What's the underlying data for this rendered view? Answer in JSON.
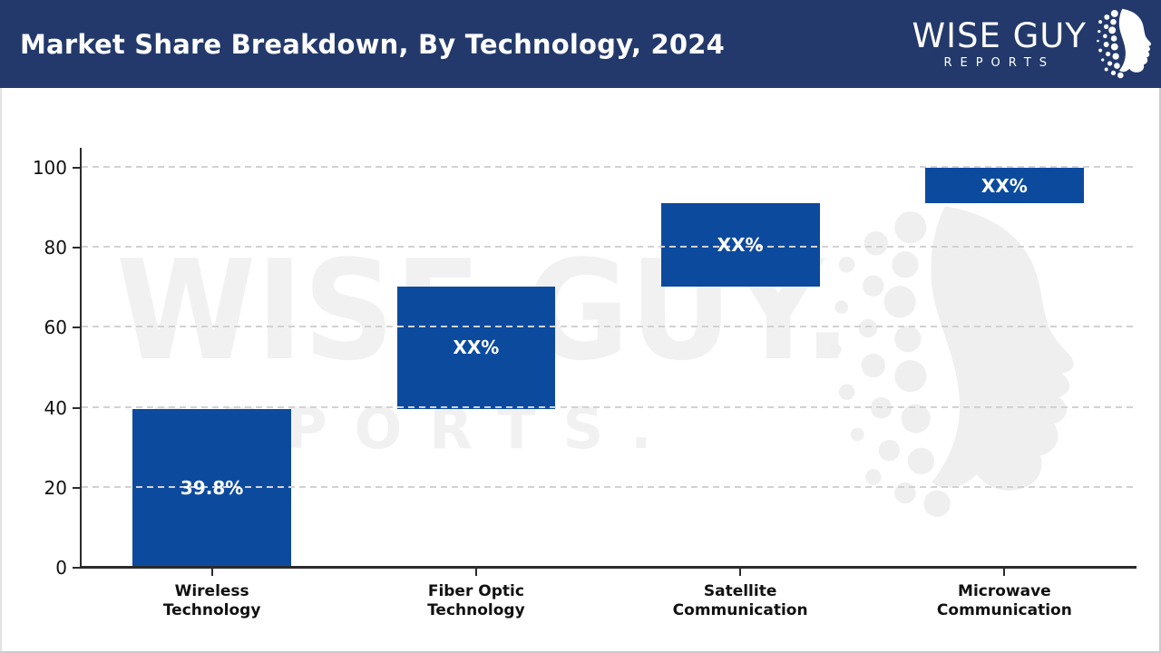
{
  "header": {
    "title": "Market Share Breakdown, By Technology, 2024",
    "bg_color": "#23396b",
    "logo": {
      "line1": "WISE GUY",
      "line2": "REPORTS"
    }
  },
  "watermark": {
    "line1": "WISE GUY.",
    "line2": "REPORTS."
  },
  "chart_data": {
    "type": "bar",
    "subtype": "waterfall-floating-segments",
    "title": "Market Share Breakdown, By Technology, 2024",
    "categories": [
      "Wireless Technology",
      "Fiber Optic Technology",
      "Satellite Communication",
      "Microwave Communication"
    ],
    "bars": [
      {
        "category_lines": [
          "Wireless",
          "Technology"
        ],
        "start": 0,
        "end": 39.8,
        "label": "39.8%"
      },
      {
        "category_lines": [
          "Fiber Optic",
          "Technology"
        ],
        "start": 39.8,
        "end": 70.3,
        "label": "XX%"
      },
      {
        "category_lines": [
          "Satellite",
          "Communication"
        ],
        "start": 70.3,
        "end": 91.1,
        "label": "XX%"
      },
      {
        "category_lines": [
          "Microwave",
          "Communication"
        ],
        "start": 91.1,
        "end": 100,
        "label": "XX%"
      }
    ],
    "y_ticks": [
      0,
      20,
      40,
      60,
      80,
      100
    ],
    "ylim": [
      0,
      105
    ],
    "xlabel": "",
    "ylabel": "",
    "grid": "dashed-horizontal-over-bars",
    "legend": "none",
    "bar_color": "#0c4a9e",
    "bar_label_color": "#ffffff",
    "axis_color": "#2b2b2b",
    "gridline_color": "#d2d2d2",
    "bar_width_fraction": 0.6
  }
}
